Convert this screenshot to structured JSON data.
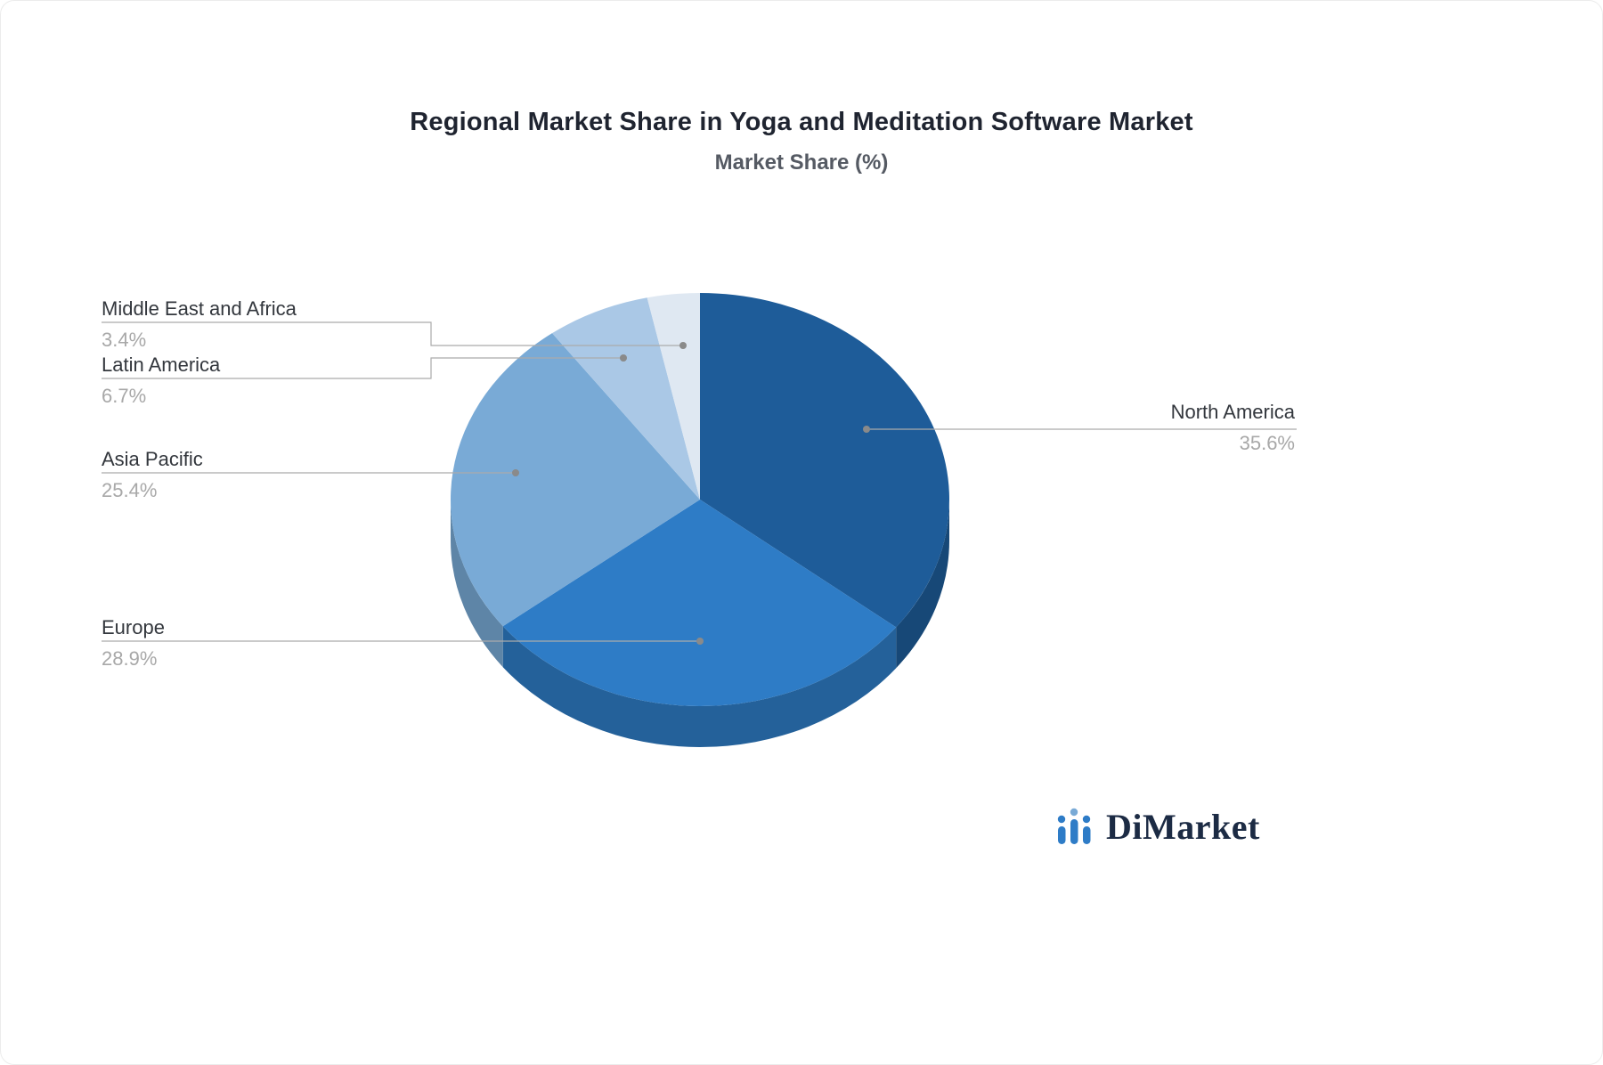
{
  "page": {
    "title": "Regional Market Share in Yoga and Meditation Software Market",
    "subtitle": "Market Share (%)"
  },
  "chart_data": {
    "type": "pie",
    "style": "3d-pie",
    "title": "Regional Market Share in Yoga and Meditation Software Market",
    "subtitle": "Market Share (%)",
    "unit": "%",
    "categories": [
      "North America",
      "Europe",
      "Asia Pacific",
      "Latin America",
      "Middle East and Africa"
    ],
    "values": [
      35.6,
      28.9,
      25.4,
      6.7,
      3.4
    ],
    "labels": [
      "35.6%",
      "28.9%",
      "25.4%",
      "6.7%",
      "3.4%"
    ],
    "colors": [
      "#1e5c99",
      "#2e7cc6",
      "#79aad6",
      "#aac8e6",
      "#dfe8f2"
    ],
    "start_angle_deg": -90,
    "direction": "clockwise",
    "legend_position": "none",
    "label_style": "callout-lines"
  },
  "branding": {
    "logo_text": "DiMarket",
    "logo_icon": "bar-chart-dots-icon",
    "logo_color": "#2e7cc7"
  }
}
